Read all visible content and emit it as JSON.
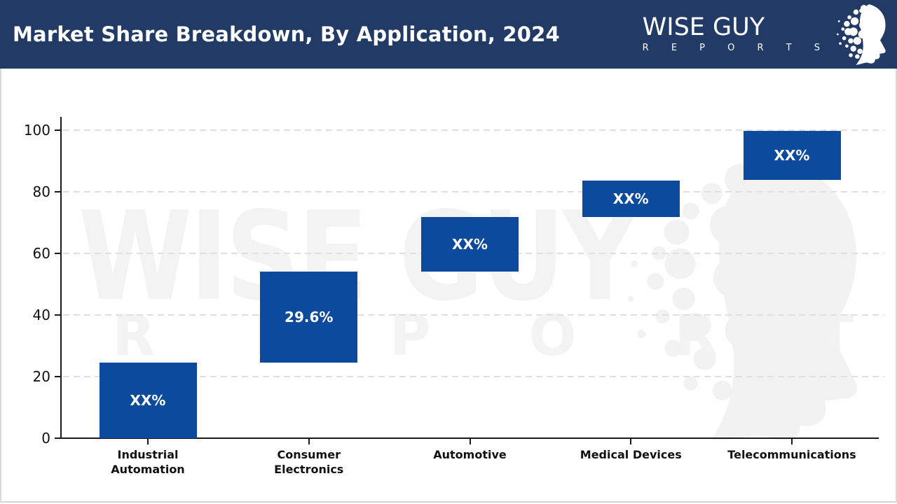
{
  "header": {
    "title": "Market Share Breakdown, By Application, 2024",
    "logo_line1": "WISE GUY",
    "logo_line2": "R E P O R T S"
  },
  "watermark": {
    "line1": "WISE GUY",
    "line2": "R E P O R T S"
  },
  "colors": {
    "header_bg": "#213a66",
    "bar_blue": "#0c4a9e",
    "grid_gray": "#e0e0e0",
    "watermark_gray": "#f3f3f3"
  },
  "chart_data": {
    "type": "bar",
    "subtype": "waterfall",
    "title": "Market Share Breakdown, By Application, 2024",
    "categories": [
      "Industrial Automation",
      "Consumer Electronics",
      "Automotive",
      "Medical Devices",
      "Telecommunications"
    ],
    "yticks": [
      0,
      20,
      40,
      60,
      80,
      100
    ],
    "ylim": [
      0,
      105
    ],
    "grid": "horizontal-dashed",
    "legend": false,
    "bar_color": "#0c4a9e",
    "value_label_color": "#ffffff",
    "segments": [
      {
        "category": "Industrial Automation",
        "category_lines": [
          "Industrial",
          "Automation"
        ],
        "start": 0,
        "end": 24.5,
        "height": 24.5,
        "value_label": "XX%"
      },
      {
        "category": "Consumer Electronics",
        "category_lines": [
          "Consumer",
          "Electronics"
        ],
        "start": 24.5,
        "end": 54.1,
        "height": 29.6,
        "value_label": "29.6%"
      },
      {
        "category": "Automotive",
        "category_lines": [
          "Automotive"
        ],
        "start": 54.1,
        "end": 71.8,
        "height": 17.7,
        "value_label": "XX%"
      },
      {
        "category": "Medical Devices",
        "category_lines": [
          "Medical Devices"
        ],
        "start": 71.9,
        "end": 83.6,
        "height": 11.7,
        "value_label": "XX%"
      },
      {
        "category": "Telecommunications",
        "category_lines": [
          "Telecommunications"
        ],
        "start": 83.9,
        "end": 99.8,
        "height": 15.9,
        "value_label": "XX%"
      }
    ]
  }
}
